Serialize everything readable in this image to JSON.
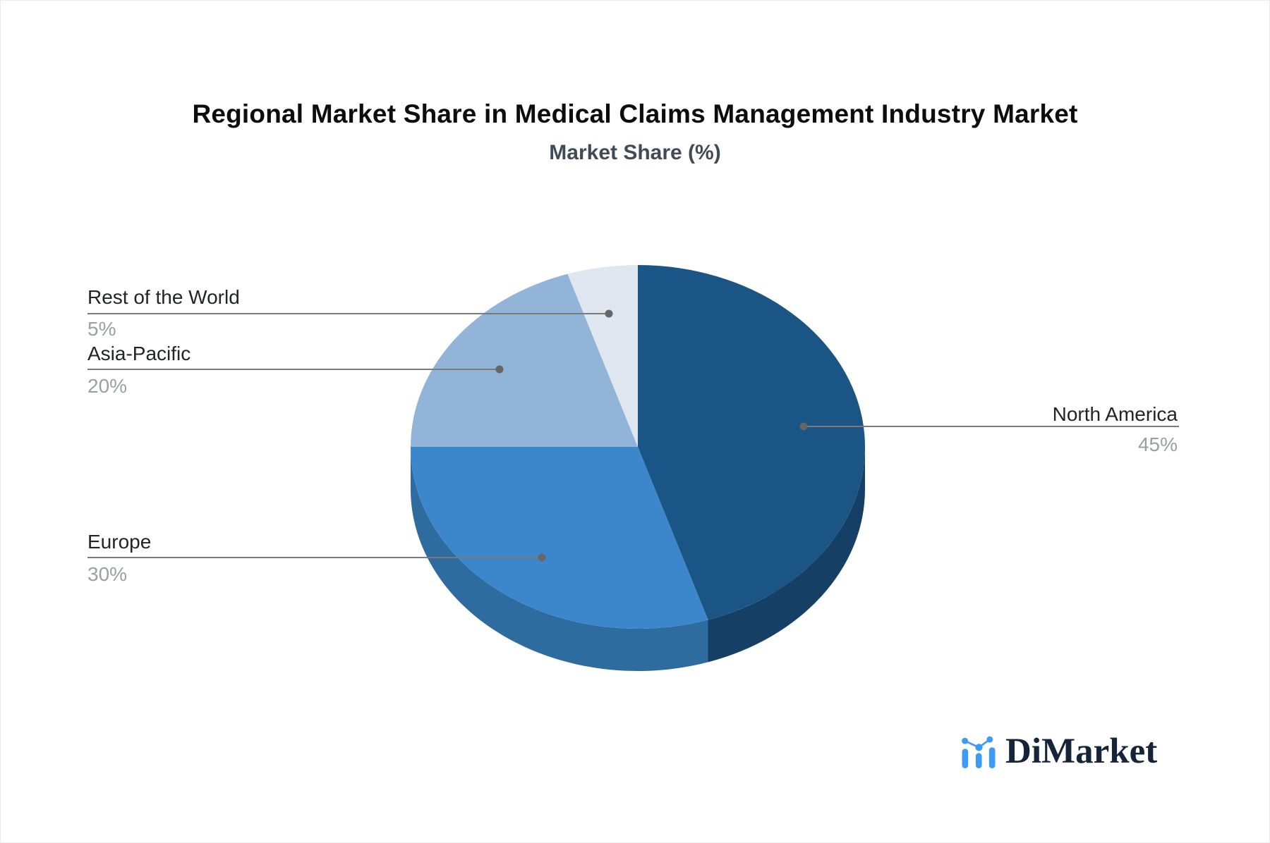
{
  "title": "Regional Market Share in Medical Claims Management Industry Market",
  "subtitle": "Market Share (%)",
  "brand": {
    "name": "DiMarket",
    "icon": "bar-line-chart-icon",
    "icon_color": "#3e9bf4",
    "text_color": "#16243a"
  },
  "chart_data": {
    "type": "pie",
    "style": "3d",
    "title": "Regional Market Share in Medical Claims Management Industry Market",
    "subtitle": "Market Share (%)",
    "unit": "%",
    "start_angle_deg": 0,
    "direction": "clockwise",
    "legend_position": "leader-line-callouts",
    "categories": [
      "North America",
      "Europe",
      "Asia-Pacific",
      "Rest of the World"
    ],
    "values": [
      45,
      30,
      20,
      5
    ],
    "display_values": [
      "45%",
      "30%",
      "20%",
      "5%"
    ],
    "slice_colors": [
      "#1b5586",
      "#3c87cc",
      "#92b4d8",
      "#dfe6f0"
    ],
    "slice_side_colors": [
      "#163f66",
      "#2e6b9e",
      "#7397bb",
      "#c2cad8"
    ],
    "callout_line_color": "#7a7a7a",
    "callout_dot_color": "#666666"
  }
}
